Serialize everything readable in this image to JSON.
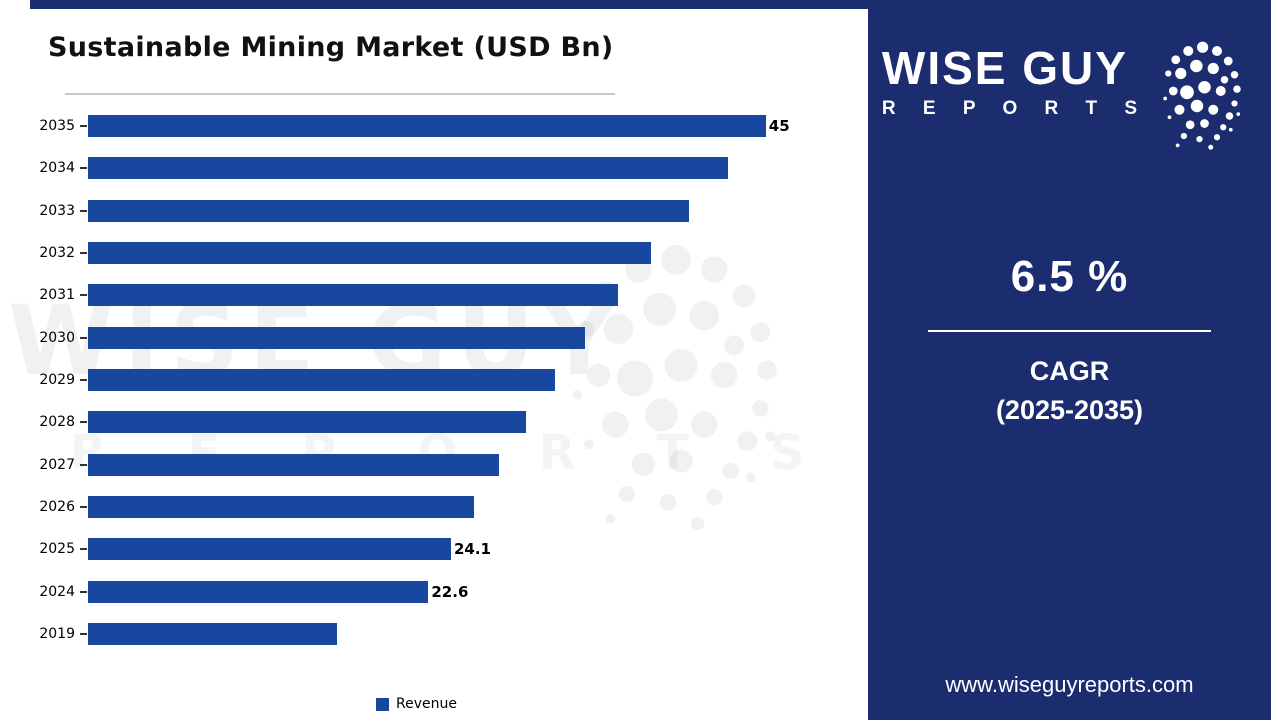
{
  "title": "Sustainable Mining Market (USD Bn)",
  "legend": {
    "label": "Revenue"
  },
  "chart_data": {
    "type": "bar",
    "orientation": "horizontal",
    "title": "Sustainable Mining Market (USD Bn)",
    "xlabel": "",
    "ylabel": "",
    "xlim": [
      0,
      48.8
    ],
    "grid": false,
    "legend_position": "bottom",
    "series_name": "Revenue",
    "categories": [
      "2035",
      "2034",
      "2033",
      "2032",
      "2031",
      "2030",
      "2029",
      "2028",
      "2027",
      "2026",
      "2025",
      "2024",
      "2019"
    ],
    "values": [
      45,
      42.5,
      39.9,
      37.4,
      35.2,
      33.0,
      31.0,
      29.1,
      27.3,
      25.6,
      24.1,
      22.6,
      16.5
    ],
    "value_labels": {
      "2035": "45",
      "2025": "24.1",
      "2024": "22.6"
    }
  },
  "watermark": {
    "line1": "WISE GUY",
    "line2": "R E P O R T S"
  },
  "sidebar": {
    "logo_line1": "WISE GUY",
    "logo_line2": "R E P O R T S",
    "logo_icon": "dotted-head-logo",
    "cagr_value": "6.5 %",
    "cagr_label": "CAGR",
    "cagr_period": "(2025-2035)",
    "website": "www.wiseguyreports.com"
  },
  "colors": {
    "bar": "#17479e",
    "panel": "#1b2d6f",
    "top_strip": "#1b2d6f",
    "value_label": "#000000",
    "divider": "#c9c9c9"
  }
}
